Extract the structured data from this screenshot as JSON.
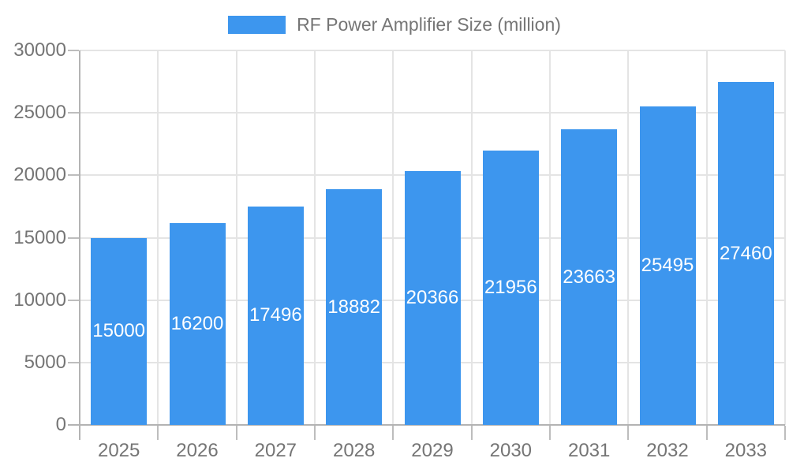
{
  "chart_data": {
    "type": "bar",
    "title": "RF Power Amplifier Size (million)",
    "categories": [
      "2025",
      "2026",
      "2027",
      "2028",
      "2029",
      "2030",
      "2031",
      "2032",
      "2033"
    ],
    "values": [
      15000,
      16200,
      17496,
      18882,
      20366,
      21956,
      23663,
      25495,
      27460
    ],
    "ylim": [
      0,
      30000
    ],
    "ytick_step": 5000,
    "ytick_labels": [
      "0",
      "5000",
      "10000",
      "15000",
      "20000",
      "25000",
      "30000"
    ],
    "grid": "on",
    "legend_position": "top-center",
    "colors": {
      "bar": "#3d96ee",
      "grid": "#e4e4e4",
      "axis": "#b3b3b3",
      "tick": "#bdbdbd",
      "label": "#757575",
      "value_label": "#ffffff",
      "background": "#ffffff"
    }
  }
}
